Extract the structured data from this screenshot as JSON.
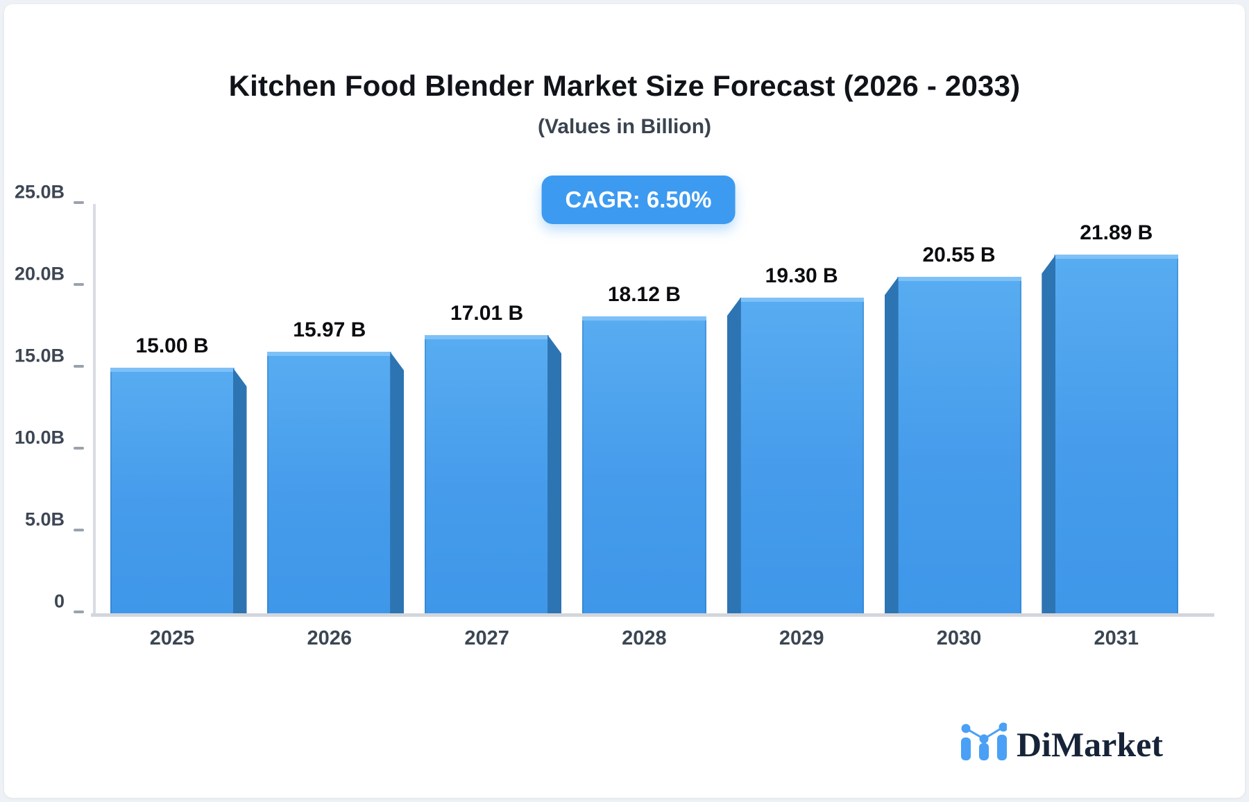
{
  "title": "Kitchen Food Blender Market Size Forecast (2026 - 2033)",
  "subtitle": "(Values in Billion)",
  "badge": {
    "label": "CAGR: 6.50%"
  },
  "brand": {
    "name": "DiMarket"
  },
  "colors": {
    "bar_face": "#469ceb",
    "bar_face_light": "#58acf1",
    "bar_top_strip": "#7ec1f7",
    "bar_side": "#2d74b3",
    "badge_bg": "#3d9af1",
    "axis_line": "#d9dce2",
    "tick": "#9aa2ad",
    "axis_text": "#3d4653",
    "value_text": "#0a0c0f",
    "brand_blue": "#4aa0f5",
    "brand_navy": "#162338",
    "card_bg": "#ffffff",
    "page_bg": "#eef1f5"
  },
  "chart_data": {
    "type": "bar",
    "title": "Kitchen Food Blender Market Size Forecast (2026 - 2033)",
    "subtitle": "(Values in Billion)",
    "cagr": "6.50%",
    "categories": [
      "2025",
      "2026",
      "2027",
      "2028",
      "2029",
      "2030",
      "2031"
    ],
    "values": [
      15.0,
      15.97,
      17.01,
      18.12,
      19.3,
      20.55,
      21.89
    ],
    "value_labels": [
      "15.00 B",
      "15.97 B",
      "17.01 B",
      "18.12 B",
      "19.30 B",
      "20.55 B",
      "21.89 B"
    ],
    "unit": "Billion",
    "ylim": [
      0,
      25
    ],
    "yticks": [
      {
        "value": 0,
        "label": "0"
      },
      {
        "value": 5,
        "label": "5.0B"
      },
      {
        "value": 10,
        "label": "10.0B"
      },
      {
        "value": 15,
        "label": "15.0B"
      },
      {
        "value": 20,
        "label": "20.0B"
      },
      {
        "value": 25,
        "label": "25.0B"
      }
    ],
    "grid": false,
    "legend": false,
    "bar_style": "3d-perspective-center"
  }
}
